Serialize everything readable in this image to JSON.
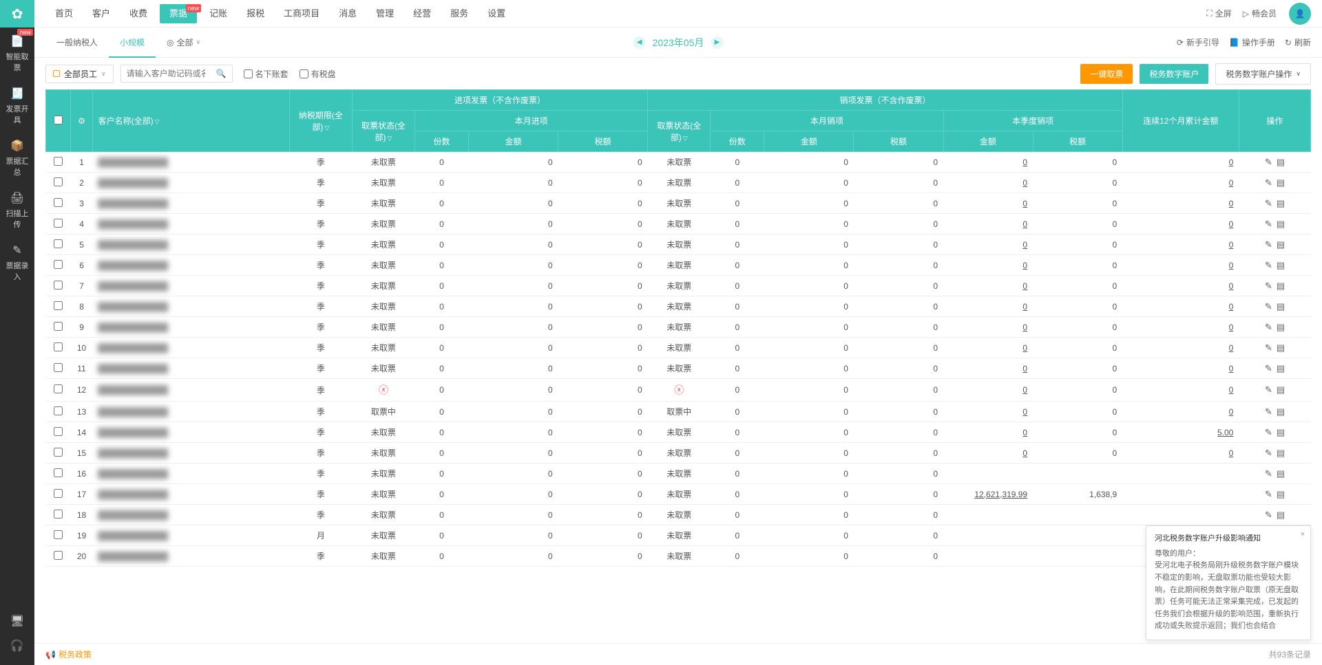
{
  "sidebar": {
    "items": [
      {
        "icon": "📄",
        "label": "智能取票",
        "new": true
      },
      {
        "icon": "🧾",
        "label": "发票开具"
      },
      {
        "icon": "📦",
        "label": "票据汇总"
      },
      {
        "icon": "🖨",
        "label": "扫描上传"
      },
      {
        "icon": "✎",
        "label": "票据录入"
      }
    ]
  },
  "topnav": {
    "items": [
      "首页",
      "客户",
      "收费",
      "票据",
      "记账",
      "报税",
      "工商项目",
      "消息",
      "管理",
      "经营",
      "服务",
      "设置"
    ],
    "active_index": 3,
    "new_index": 3,
    "fullscreen": "全屏",
    "member": "畅会员"
  },
  "subheader": {
    "tabs": [
      "一般纳税人",
      "小规模"
    ],
    "active_tab": 1,
    "region_label": "全部",
    "date": "2023年05月",
    "links": [
      {
        "icon": "⟳",
        "label": "新手引导"
      },
      {
        "icon": "📘",
        "label": "操作手册"
      },
      {
        "icon": "↻",
        "label": "刷新"
      }
    ]
  },
  "toolbar": {
    "employee": "全部员工",
    "search_placeholder": "请输入客户助记码或名称",
    "chk1": "名下账套",
    "chk2": "有税盘",
    "btn_fetch": "一键取票",
    "btn_digital": "税务数字账户",
    "btn_ops": "税务数字账户操作"
  },
  "table": {
    "headers": {
      "customer": "客户名称(全部)",
      "period": "纳税期限(全部)",
      "in_group": "进项发票（不含作废票）",
      "out_group": "销项发票（不含作废票）",
      "status": "取票状态(全部)",
      "month_in": "本月进项",
      "month_out": "本月销项",
      "quarter_out": "本季度销项",
      "count": "份数",
      "amount": "金额",
      "tax": "税额",
      "accum": "连续12个月累计金额",
      "ops": "操作"
    },
    "rows": [
      {
        "idx": 1,
        "period": "季",
        "in_status": "未取票",
        "in_cnt": "0",
        "in_amt": "0",
        "in_tax": "0",
        "out_status": "未取票",
        "out_cnt": "0",
        "out_amt": "0",
        "out_tax": "0",
        "q_amt": "0",
        "q_tax": "0",
        "accum": "0"
      },
      {
        "idx": 2,
        "period": "季",
        "in_status": "未取票",
        "in_cnt": "0",
        "in_amt": "0",
        "in_tax": "0",
        "out_status": "未取票",
        "out_cnt": "0",
        "out_amt": "0",
        "out_tax": "0",
        "q_amt": "0",
        "q_tax": "0",
        "accum": "0"
      },
      {
        "idx": 3,
        "period": "季",
        "in_status": "未取票",
        "in_cnt": "0",
        "in_amt": "0",
        "in_tax": "0",
        "out_status": "未取票",
        "out_cnt": "0",
        "out_amt": "0",
        "out_tax": "0",
        "q_amt": "0",
        "q_tax": "0",
        "accum": "0"
      },
      {
        "idx": 4,
        "period": "季",
        "in_status": "未取票",
        "in_cnt": "0",
        "in_amt": "0",
        "in_tax": "0",
        "out_status": "未取票",
        "out_cnt": "0",
        "out_amt": "0",
        "out_tax": "0",
        "q_amt": "0",
        "q_tax": "0",
        "accum": "0"
      },
      {
        "idx": 5,
        "period": "季",
        "in_status": "未取票",
        "in_cnt": "0",
        "in_amt": "0",
        "in_tax": "0",
        "out_status": "未取票",
        "out_cnt": "0",
        "out_amt": "0",
        "out_tax": "0",
        "q_amt": "0",
        "q_tax": "0",
        "accum": "0"
      },
      {
        "idx": 6,
        "period": "季",
        "in_status": "未取票",
        "in_cnt": "0",
        "in_amt": "0",
        "in_tax": "0",
        "out_status": "未取票",
        "out_cnt": "0",
        "out_amt": "0",
        "out_tax": "0",
        "q_amt": "0",
        "q_tax": "0",
        "accum": "0"
      },
      {
        "idx": 7,
        "period": "季",
        "in_status": "未取票",
        "in_cnt": "0",
        "in_amt": "0",
        "in_tax": "0",
        "out_status": "未取票",
        "out_cnt": "0",
        "out_amt": "0",
        "out_tax": "0",
        "q_amt": "0",
        "q_tax": "0",
        "accum": "0"
      },
      {
        "idx": 8,
        "period": "季",
        "in_status": "未取票",
        "in_cnt": "0",
        "in_amt": "0",
        "in_tax": "0",
        "out_status": "未取票",
        "out_cnt": "0",
        "out_amt": "0",
        "out_tax": "0",
        "q_amt": "0",
        "q_tax": "0",
        "accum": "0"
      },
      {
        "idx": 9,
        "period": "季",
        "in_status": "未取票",
        "in_cnt": "0",
        "in_amt": "0",
        "in_tax": "0",
        "out_status": "未取票",
        "out_cnt": "0",
        "out_amt": "0",
        "out_tax": "0",
        "q_amt": "0",
        "q_tax": "0",
        "accum": "0"
      },
      {
        "idx": 10,
        "period": "季",
        "in_status": "未取票",
        "in_cnt": "0",
        "in_amt": "0",
        "in_tax": "0",
        "out_status": "未取票",
        "out_cnt": "0",
        "out_amt": "0",
        "out_tax": "0",
        "q_amt": "0",
        "q_tax": "0",
        "accum": "0"
      },
      {
        "idx": 11,
        "period": "季",
        "in_status": "未取票",
        "in_cnt": "0",
        "in_amt": "0",
        "in_tax": "0",
        "out_status": "未取票",
        "out_cnt": "0",
        "out_amt": "0",
        "out_tax": "0",
        "q_amt": "0",
        "q_tax": "0",
        "accum": "0"
      },
      {
        "idx": 12,
        "period": "季",
        "in_status": "ERR",
        "in_cnt": "0",
        "in_amt": "0",
        "in_tax": "0",
        "out_status": "ERR",
        "out_cnt": "0",
        "out_amt": "0",
        "out_tax": "0",
        "q_amt": "0",
        "q_tax": "0",
        "accum": "0"
      },
      {
        "idx": 13,
        "period": "季",
        "in_status": "取票中",
        "in_cnt": "0",
        "in_amt": "0",
        "in_tax": "0",
        "out_status": "取票中",
        "out_cnt": "0",
        "out_amt": "0",
        "out_tax": "0",
        "q_amt": "0",
        "q_tax": "0",
        "accum": "0"
      },
      {
        "idx": 14,
        "period": "季",
        "in_status": "未取票",
        "in_cnt": "0",
        "in_amt": "0",
        "in_tax": "0",
        "out_status": "未取票",
        "out_cnt": "0",
        "out_amt": "0",
        "out_tax": "0",
        "q_amt": "0",
        "q_tax": "0",
        "accum": "5.00"
      },
      {
        "idx": 15,
        "period": "季",
        "in_status": "未取票",
        "in_cnt": "0",
        "in_amt": "0",
        "in_tax": "0",
        "out_status": "未取票",
        "out_cnt": "0",
        "out_amt": "0",
        "out_tax": "0",
        "q_amt": "0",
        "q_tax": "0",
        "accum": "0"
      },
      {
        "idx": 16,
        "period": "季",
        "in_status": "未取票",
        "in_cnt": "0",
        "in_amt": "0",
        "in_tax": "0",
        "out_status": "未取票",
        "out_cnt": "0",
        "out_amt": "0",
        "out_tax": "0",
        "q_amt": "",
        "q_tax": "",
        "accum": ""
      },
      {
        "idx": 17,
        "period": "季",
        "in_status": "未取票",
        "in_cnt": "0",
        "in_amt": "0",
        "in_tax": "0",
        "out_status": "未取票",
        "out_cnt": "0",
        "out_amt": "0",
        "out_tax": "0",
        "q_amt": "12,621,319.99",
        "q_tax": "1,638,9",
        "accum": ""
      },
      {
        "idx": 18,
        "period": "季",
        "in_status": "未取票",
        "in_cnt": "0",
        "in_amt": "0",
        "in_tax": "0",
        "out_status": "未取票",
        "out_cnt": "0",
        "out_amt": "0",
        "out_tax": "0",
        "q_amt": "",
        "q_tax": "",
        "accum": ""
      },
      {
        "idx": 19,
        "period": "月",
        "in_status": "未取票",
        "in_cnt": "0",
        "in_amt": "0",
        "in_tax": "0",
        "out_status": "未取票",
        "out_cnt": "0",
        "out_amt": "0",
        "out_tax": "0",
        "q_amt": "",
        "q_tax": "",
        "accum": ""
      },
      {
        "idx": 20,
        "period": "季",
        "in_status": "未取票",
        "in_cnt": "0",
        "in_amt": "0",
        "in_tax": "0",
        "out_status": "未取票",
        "out_cnt": "0",
        "out_amt": "0",
        "out_tax": "0",
        "q_amt": "",
        "q_tax": "",
        "accum": ""
      }
    ]
  },
  "footer": {
    "policy": "税务政策",
    "total": "共93条记录"
  },
  "notify": {
    "title": "河北税务数字账户升级影响通知",
    "greeting": "尊敬的用户：",
    "body": "受河北电子税务局刚升级税务数字账户模块不稳定的影响，无盘取票功能也受较大影响，在此期间税务数字账户取票（原无盘取票）任务可能无法正常采集完成，已发起的任务我们会根据升级的影响范围，重新执行成功或失败提示返回；我们也会结合"
  },
  "colors": {
    "teal": "#3bc4b8",
    "orange": "#ff9800"
  }
}
